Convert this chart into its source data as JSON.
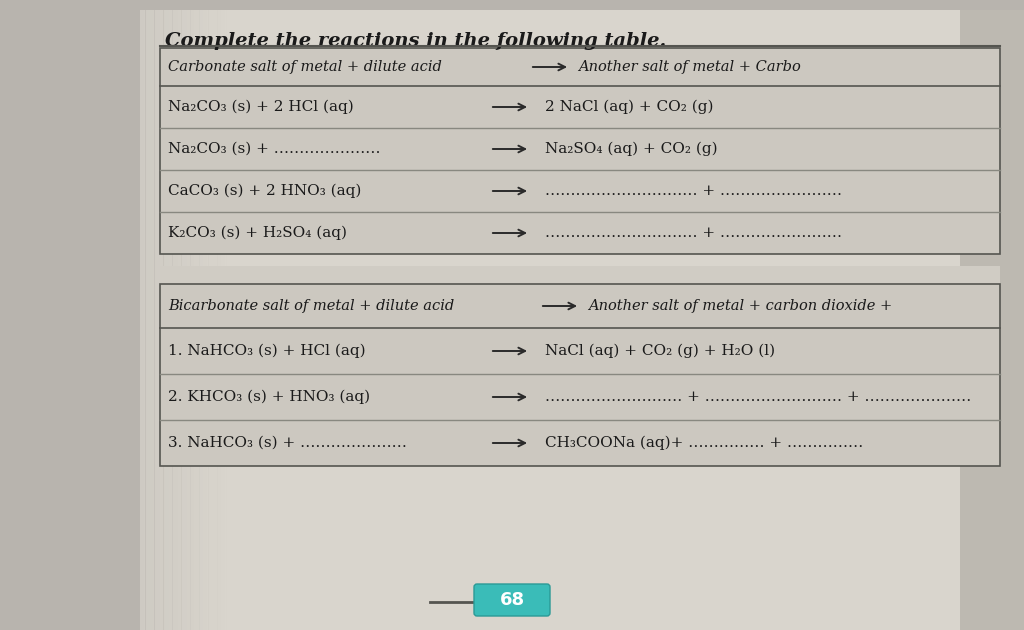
{
  "bg_color": "#b8b4ae",
  "page_color": "#d4d0c8",
  "title": "Complete the reactions in the following table.",
  "page_number": "68",
  "section1_header_left": "Carbonate salt of metal + dilute acid",
  "section1_header_right": "Another salt of metal + Carbo",
  "section1_rows": [
    {
      "left": "Na₂CO₃ (s) + 2 HCl (aq)",
      "right": "2 NaCl (aq) + CO₂ (g)"
    },
    {
      "left": "Na₂CO₃ (s) + …………………",
      "right": "Na₂SO₄ (aq) + CO₂ (g)"
    },
    {
      "left": "CaCO₃ (s) + 2 HNO₃ (aq)",
      "right": "………………………… + ……………………"
    },
    {
      "left": "K₂CO₃ (s) + H₂SO₄ (aq)",
      "right": "………………………… + ……………………"
    }
  ],
  "section2_header_left": "Bicarbonate salt of metal + dilute acid",
  "section2_header_right": "Another salt of metal + carbon dioxide +",
  "section2_rows": [
    {
      "num": "1.",
      "left": "NaHCO₃ (s) + HCl (aq)",
      "right": "NaCl (aq) + CO₂ (g) + H₂O (l)"
    },
    {
      "num": "2.",
      "left": "KHCO₃ (s) + HNO₃ (aq)",
      "right": "……………………… + ……………………… + …………………"
    },
    {
      "num": "3.",
      "left": "NaHCO₃ (s) + …………………",
      "right": "CH₃COONa (aq)+ …………… + ……………"
    }
  ],
  "line_color": "#888880",
  "border_color": "#555550",
  "text_color": "#1a1a1a",
  "arrow_color": "#2a2a2a"
}
